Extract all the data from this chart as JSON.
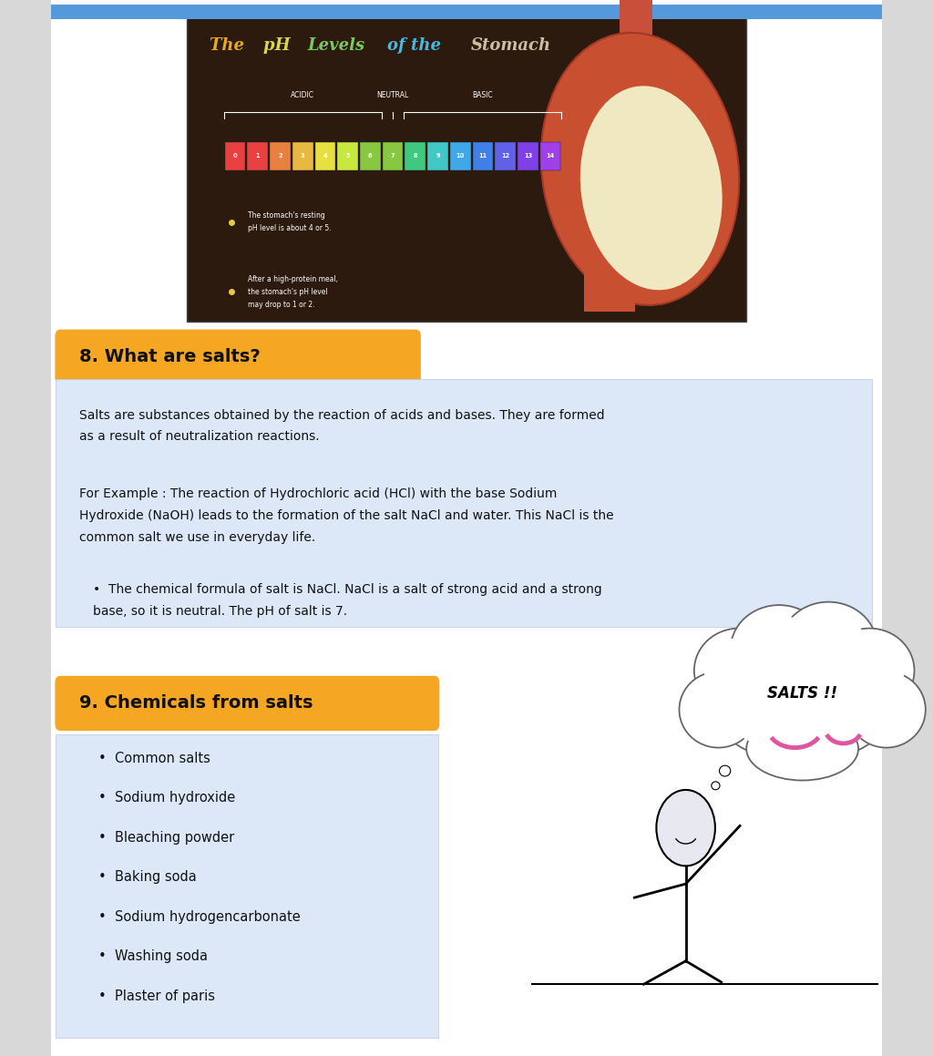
{
  "page_bg": "#ffffff",
  "image_bg": "#2c1a0e",
  "ph_colors": [
    "#e84040",
    "#e84040",
    "#e88040",
    "#e8b840",
    "#e8e040",
    "#c8e840",
    "#88c840",
    "#88c840",
    "#40c880",
    "#40c8c8",
    "#40a8e8",
    "#4080e8",
    "#6060e8",
    "#8040e8",
    "#a040e8"
  ],
  "ph_labels": [
    "0",
    "1",
    "2",
    "3",
    "4",
    "5",
    "6",
    "7",
    "8",
    "9",
    "10",
    "11",
    "12",
    "13",
    "14"
  ],
  "acidic_label": "ACIDIC",
  "neutral_label": "NEUTRAL",
  "basic_label": "BASIC",
  "bullet1": "The stomach's resting\npH level is about 4 or 5.",
  "bullet2": "After a high-protein meal,\nthe stomach's pH level\nmay drop to 1 or 2.",
  "section8_heading": "8. What are salts?",
  "section8_heading_bg": "#f5a623",
  "section8_box_bg": "#dce8f8",
  "section8_text1": "Salts are substances obtained by the reaction of acids and bases. They are formed\nas a result of neutralization reactions.",
  "section8_text2": "For Example : The reaction of Hydrochloric acid (HCl) with the base Sodium\nHydroxide (NaOH) leads to the formation of the salt NaCl and water. This NaCl is the\ncommon salt we use in everyday life.",
  "section8_bullet": "The chemical formula of salt is NaCl. NaCl is a salt of strong acid and a strong\nbase, so it is neutral. The pH of salt is 7.",
  "section9_heading": "9. Chemicals from salts",
  "section9_heading_bg": "#f5a623",
  "section9_box_bg": "#dce8f8",
  "section9_items": [
    "Common salts",
    "Sodium hydroxide",
    "Bleaching powder",
    "Baking soda",
    "Sodium hydrogencarbonate",
    "Washing soda",
    "Plaster of paris"
  ],
  "watermark_color": "#e88080",
  "watermark_alpha": 0.3,
  "title_words": [
    [
      "The ",
      "#e8a820"
    ],
    [
      "pH ",
      "#d8d850"
    ],
    [
      "Levels ",
      "#78c860"
    ],
    [
      "of the ",
      "#48b8e0"
    ],
    [
      "Stomach",
      "#c8c0a0"
    ]
  ]
}
